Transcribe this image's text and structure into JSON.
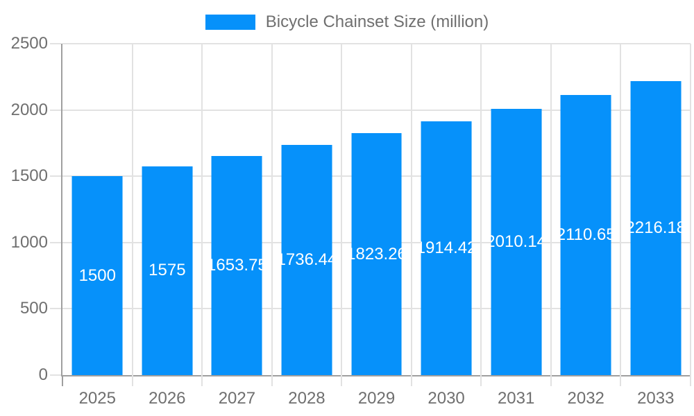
{
  "legend": {
    "label": "Bicycle Chainset Size (million)"
  },
  "colors": {
    "bar": "#0691fa",
    "grid": "#e2e2e2",
    "axis_border": "#9f9f9f",
    "tick_text": "#6f6f6f",
    "value_label": "#ffffff",
    "background": "#ffffff"
  },
  "chart_data": {
    "type": "bar",
    "title": "",
    "xlabel": "",
    "ylabel": "",
    "legend_position": "top",
    "grid": true,
    "categories": [
      "2025",
      "2026",
      "2027",
      "2028",
      "2029",
      "2030",
      "2031",
      "2032",
      "2033"
    ],
    "series": [
      {
        "name": "Bicycle Chainset Size (million)",
        "values": [
          1500,
          1575,
          1653.75,
          1736.44,
          1823.26,
          1914.42,
          2010.14,
          2110.65,
          2216.18
        ]
      }
    ],
    "value_labels": [
      "1500",
      "1575",
      "1653.75",
      "1736.44",
      "1823.26",
      "1914.42",
      "2010.14",
      "2110.65",
      "2216.18"
    ],
    "ylim": [
      0,
      2500
    ],
    "yticks": [
      0,
      500,
      1000,
      1500,
      2000,
      2500
    ]
  }
}
